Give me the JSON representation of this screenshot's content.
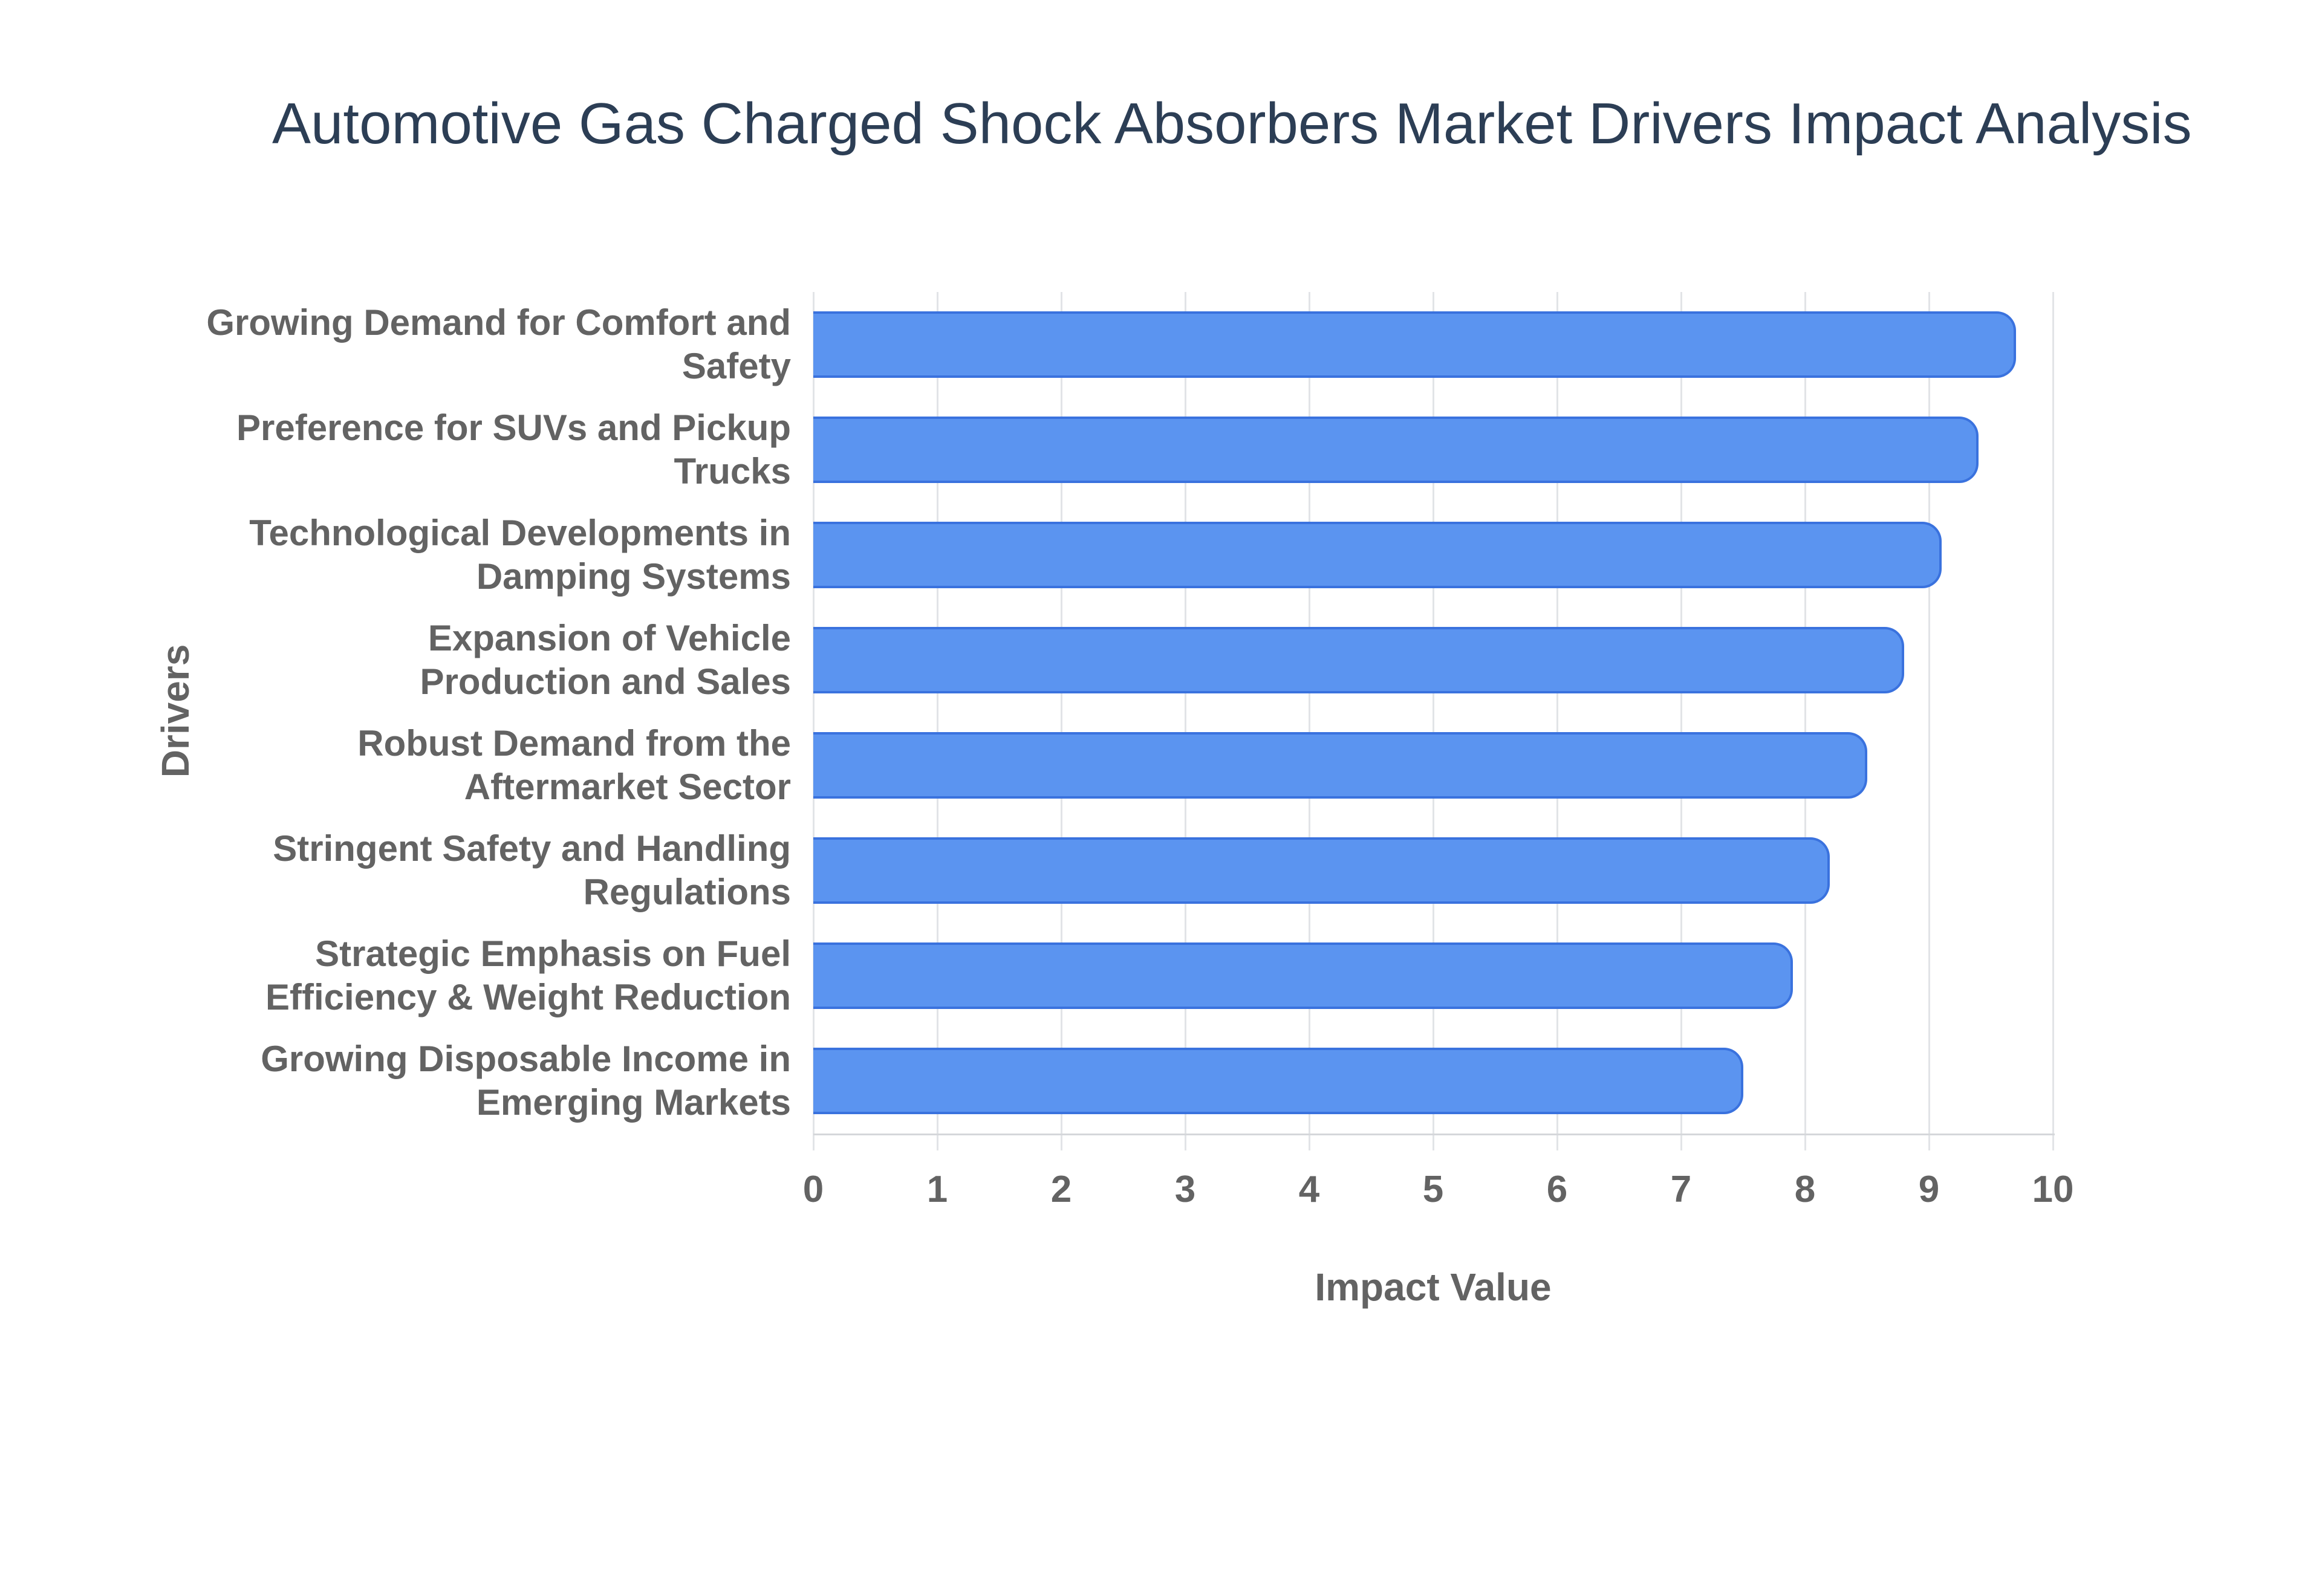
{
  "title": "Automotive Gas Charged Shock Absorbers Market Drivers Impact Analysis",
  "chart_data": {
    "type": "bar",
    "orientation": "horizontal",
    "title": "Automotive Gas Charged Shock Absorbers Market Drivers Impact Analysis",
    "xlabel": "Impact Value",
    "ylabel": "Drivers",
    "xlim": [
      0,
      10
    ],
    "xticks": [
      0,
      1,
      2,
      3,
      4,
      5,
      6,
      7,
      8,
      9,
      10
    ],
    "grid": true,
    "legend": false,
    "categories": [
      "Growing Demand for Comfort and Safety",
      "Preference for SUVs and Pickup Trucks",
      "Technological Developments in Damping Systems",
      "Expansion of Vehicle Production and Sales",
      "Robust Demand from the Aftermarket Sector",
      "Stringent Safety and Handling Regulations",
      "Strategic Emphasis on Fuel Efficiency & Weight Reduction",
      "Growing Disposable Income in Emerging Markets"
    ],
    "category_lines": [
      [
        "Growing Demand for Comfort and",
        "Safety"
      ],
      [
        "Preference for SUVs and Pickup",
        "Trucks"
      ],
      [
        "Technological Developments in",
        "Damping Systems"
      ],
      [
        "Expansion of Vehicle",
        "Production and Sales"
      ],
      [
        "Robust Demand from the",
        "Aftermarket Sector"
      ],
      [
        "Stringent Safety and Handling",
        "Regulations"
      ],
      [
        "Strategic Emphasis on Fuel",
        "Efficiency & Weight Reduction"
      ],
      [
        "Growing Disposable Income in",
        "Emerging Markets"
      ]
    ],
    "values": [
      9.7,
      9.4,
      9.1,
      8.8,
      8.5,
      8.2,
      7.9,
      7.5
    ],
    "colors": {
      "bar_fill": "#5b94f0",
      "bar_border": "#3a72de",
      "gridline": "#e2e4e7",
      "axis_line": "#d5d7da",
      "title_text": "#2c3e55",
      "label_text": "#636363",
      "background": "#ffffff"
    }
  }
}
